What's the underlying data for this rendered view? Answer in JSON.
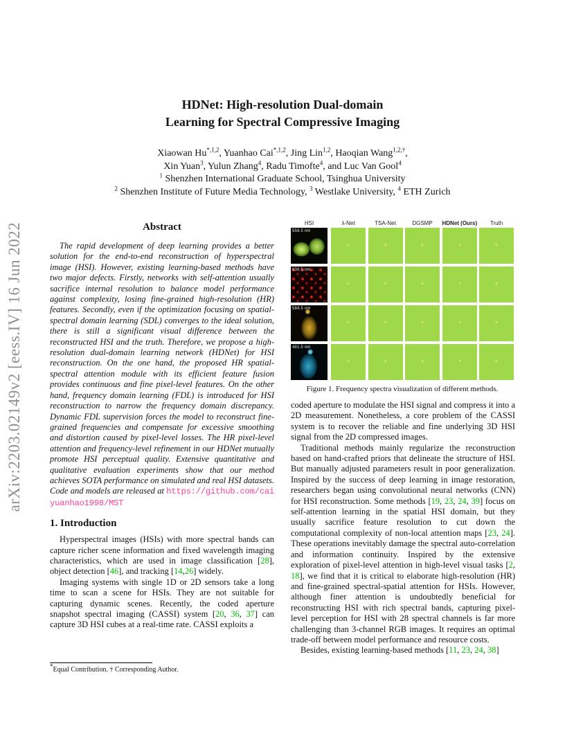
{
  "colors": {
    "cite_green": "#00bf00",
    "url_pink": "#f0439c",
    "arxiv_gray": "#8f8f8f"
  },
  "arxiv_banner": {
    "text": "arXiv:2203.02149v2  [eess.IV]  16 Jun 2022"
  },
  "header": {
    "title_line1": "HDNet: High-resolution Dual-domain",
    "title_line2": "Learning for Spectral Compressive Imaging",
    "author_line1": [
      {
        "t": "Xiaowan Hu"
      },
      {
        "t": "*,1,2",
        "s": "sup"
      },
      {
        "t": ", Yuanhao Cai"
      },
      {
        "t": "*,1,2",
        "s": "sup"
      },
      {
        "t": ", Jing Lin"
      },
      {
        "t": "1,2",
        "s": "sup"
      },
      {
        "t": ", Haoqian Wang"
      },
      {
        "t": "1,2,†",
        "s": "sup"
      },
      {
        "t": ","
      }
    ],
    "author_line2": [
      {
        "t": "Xin Yuan"
      },
      {
        "t": "3",
        "s": "sup"
      },
      {
        "t": ", Yulun Zhang"
      },
      {
        "t": "4",
        "s": "sup"
      },
      {
        "t": ", Radu Timofte"
      },
      {
        "t": "4",
        "s": "sup"
      },
      {
        "t": ", and Luc Van Gool"
      },
      {
        "t": "4",
        "s": "sup"
      }
    ],
    "affil_line1": [
      {
        "t": "1",
        "s": "sup"
      },
      {
        "t": " Shenzhen International Graduate School, Tsinghua University"
      }
    ],
    "affil_line2": [
      {
        "t": "2",
        "s": "sup"
      },
      {
        "t": " Shenzhen Institute of Future Media Technology, "
      },
      {
        "t": "3",
        "s": "sup"
      },
      {
        "t": " Westlake University, "
      },
      {
        "t": "4",
        "s": "sup"
      },
      {
        "t": " ETH Zurich"
      }
    ]
  },
  "abstract": {
    "heading": "Abstract",
    "body": [
      {
        "t": "The rapid development of deep learning provides a better solution for the end-to-end reconstruction of hyperspectral image (HSI). However, existing learning-based methods have two major defects. Firstly, networks with self-attention usually sacrifice internal resolution to balance model performance against complexity, losing fine-grained high-resolution (HR) features. Secondly, even if the optimization focusing on spatial-spectral domain learning (SDL) converges to the ideal solution, there is still a significant visual difference between the reconstructed HSI and the truth. Therefore, we propose a high-resolution dual-domain learning network (HDNet) for HSI reconstruction. On the one hand, the proposed HR spatial-spectral attention module with its efficient feature fusion provides continuous and fine pixel-level features. On the other hand, frequency domain learning (FDL) is introduced for HSI reconstruction to narrow the frequency domain discrepancy. Dynamic FDL supervision forces the model to reconstruct fine-grained frequencies and compensate for excessive smoothing and distortion caused by pixel-level losses. The HR pixel-level attention and frequency-level refinement in our HDNet mutually promote HSI perceptual quality. Extensive quantitative and qualitative evaluation experiments show that our method achieves SOTA performance on simulated and real HSI datasets. Code and models are released at "
      },
      {
        "t": "https://github.com/caiyuanhao1998/MST",
        "s": "link"
      }
    ]
  },
  "introduction": {
    "heading": "1. Introduction",
    "paragraphs": [
      {
        "segments": [
          {
            "t": "Hyperspectral images (HSIs) with more spectral bands can capture richer scene information and fixed wavelength imaging characteristics, which are used in image classification ["
          },
          {
            "t": "28",
            "s": "cite"
          },
          {
            "t": "], object detection ["
          },
          {
            "t": "46",
            "s": "cite"
          },
          {
            "t": "], and tracking ["
          },
          {
            "t": "14",
            "s": "cite"
          },
          {
            "t": ","
          },
          {
            "t": "26",
            "s": "cite"
          },
          {
            "t": "] widely."
          }
        ]
      },
      {
        "segments": [
          {
            "t": "Imaging systems with single 1D or 2D sensors take a long time to scan a scene for HSIs. They are not suitable for capturing dynamic scenes. Recently, the coded aperture snapshot spectral imaging (CASSI) system ["
          },
          {
            "t": "20",
            "s": "cite"
          },
          {
            "t": ", "
          },
          {
            "t": "36",
            "s": "cite"
          },
          {
            "t": ", "
          },
          {
            "t": "37",
            "s": "cite"
          },
          {
            "t": "] can capture 3D HSI cubes at a real-time rate. CASSI exploits a"
          }
        ]
      }
    ]
  },
  "figure1": {
    "columns": [
      "HSI",
      "λ-Net",
      "TSA-Net",
      "DGSMP",
      "HDNet (Ours)",
      "Truth"
    ],
    "rows": [
      {
        "wavelength": "558.5 nm"
      },
      {
        "wavelength": "636.5 nm"
      },
      {
        "wavelength": "584.5 nm"
      },
      {
        "wavelength": "481.5 nm"
      }
    ],
    "caption": "Figure 1. Frequency spectra visualization of different methods."
  },
  "right_column": {
    "paragraphs": [
      {
        "segments": [
          {
            "t": "coded aperture to modulate the HSI signal and compress it into a 2D measurement. Nonetheless, a core problem of the CASSI system is to recover the reliable and fine underlying 3D HSI signal from the 2D compressed images."
          }
        ]
      },
      {
        "segments": [
          {
            "t": "Traditional methods mainly regularize the reconstruction based on hand-crafted priors that delineate the structure of HSI. But manually adjusted parameters result in poor generalization. Inspired by the success of deep learning in image restoration, researchers began using convolutional neural networks (CNN) for HSI reconstruction. Some methods ["
          },
          {
            "t": "19",
            "s": "cite"
          },
          {
            "t": ", "
          },
          {
            "t": "23",
            "s": "cite"
          },
          {
            "t": ", "
          },
          {
            "t": "24",
            "s": "cite"
          },
          {
            "t": ", "
          },
          {
            "t": "39",
            "s": "cite"
          },
          {
            "t": "] focus on self-attention learning in the spatial HSI domain, but they usually sacrifice feature resolution to cut down the computational complexity of non-local attention maps ["
          },
          {
            "t": "23",
            "s": "cite"
          },
          {
            "t": ", "
          },
          {
            "t": "24",
            "s": "cite"
          },
          {
            "t": "]. These operations inevitably damage the spectral auto-correlation and information continuity. Inspired by the extensive exploration of pixel-level attention in high-level visual tasks ["
          },
          {
            "t": "2",
            "s": "cite"
          },
          {
            "t": ", "
          },
          {
            "t": "18",
            "s": "cite"
          },
          {
            "t": "], we find that it is critical to elaborate high-resolution (HR) and fine-grained spectral-spatial attention for HSIs. However, although finer attention is undoubtedly beneficial for reconstructing HSI with rich spectral bands, capturing pixel-level perception for HSI with 28 spectral channels is far more challenging than 3-channel RGB images. It requires an optimal trade-off between model performance and resource costs."
          }
        ]
      },
      {
        "segments": [
          {
            "t": "Besides, existing learning-based methods ["
          },
          {
            "t": "11",
            "s": "cite"
          },
          {
            "t": ", "
          },
          {
            "t": "23",
            "s": "cite"
          },
          {
            "t": ", "
          },
          {
            "t": "24",
            "s": "cite"
          },
          {
            "t": ", "
          },
          {
            "t": "38",
            "s": "cite"
          },
          {
            "t": "]"
          }
        ]
      }
    ]
  },
  "footnote": {
    "segments": [
      {
        "t": "*",
        "s": "sup"
      },
      {
        "t": "Equal Contribution. † Corresponding Author."
      }
    ]
  }
}
